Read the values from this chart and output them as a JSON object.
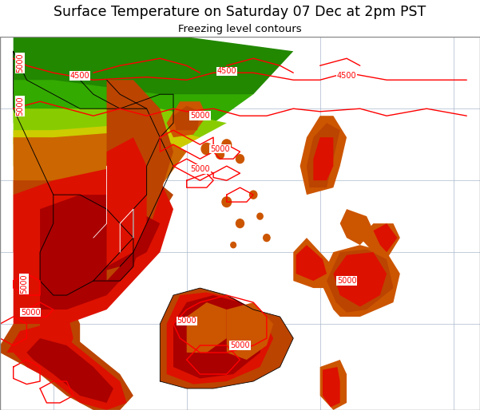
{
  "title": "Surface Temperature on Saturday 07 Dec at 2pm PST",
  "subtitle": "Freezing level contours",
  "title_fontsize": 12.5,
  "subtitle_fontsize": 9.5,
  "fig_width": 6.01,
  "fig_height": 5.14,
  "dpi": 100,
  "background_color": "#ffffff",
  "ocean_color": "#c8d4ee",
  "grid_color": "#aab8cc",
  "contour_color": "#ff0000",
  "title_box_color": "#f0f0f0",
  "temp_colormap": {
    "colors": [
      "#00aa00",
      "#44bb00",
      "#88cc00",
      "#ccdd00",
      "#ffee00",
      "#ffcc00",
      "#ffaa00",
      "#ff8800",
      "#ff6600",
      "#dd4400",
      "#cc2200",
      "#aa0000",
      "#880000"
    ],
    "values": [
      0,
      500,
      1000,
      1500,
      2000,
      2500,
      3000,
      3500,
      4000,
      4500,
      5000,
      5500,
      6000
    ]
  },
  "lon_min": 96,
  "lon_max": 132,
  "lat_min": -1,
  "lat_max": 25,
  "grid_lons": [
    100,
    110,
    120,
    130
  ],
  "grid_lats": [
    5,
    10,
    15,
    20
  ],
  "contour_levels": [
    4500,
    5000
  ],
  "label_fontsize": 7
}
